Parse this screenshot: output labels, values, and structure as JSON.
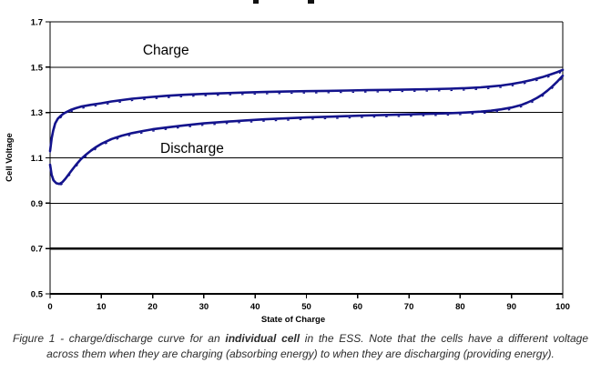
{
  "caption": {
    "line1_pre": "Figure 1 - charge/discharge curve for an ",
    "line1_bold": "individual cell",
    "line1_post": " in the ESS. Note that the cells have a different voltage",
    "line2": "across them when they are charging (absorbing energy) to when they are discharging (providing energy)."
  },
  "chart_data": {
    "type": "line",
    "title": "",
    "xlabel": "State of Charge",
    "ylabel": "Cell Voltage",
    "xlim": [
      0,
      100
    ],
    "ylim": [
      0.5,
      1.7
    ],
    "xticks": [
      0,
      10,
      20,
      30,
      40,
      50,
      60,
      70,
      80,
      90,
      100
    ],
    "yticks": [
      0.5,
      0.7,
      0.9,
      1.1,
      1.3,
      1.5,
      1.7
    ],
    "grid": true,
    "emphasized_gridline": 0.7,
    "legend_position": "none",
    "line_color": "#13138c",
    "annotations": [
      {
        "text": "Charge",
        "x": 22.6,
        "y": 1.576
      },
      {
        "text": "Discharge",
        "x": 27.7,
        "y": 1.142
      }
    ],
    "series": [
      {
        "name": "Charge",
        "points": [
          [
            0,
            1.13
          ],
          [
            0.3,
            1.185
          ],
          [
            0.6,
            1.22
          ],
          [
            1,
            1.252
          ],
          [
            1.5,
            1.272
          ],
          [
            2,
            1.284
          ],
          [
            2.5,
            1.293
          ],
          [
            3,
            1.3
          ],
          [
            4,
            1.311
          ],
          [
            5,
            1.319
          ],
          [
            6,
            1.326
          ],
          [
            8,
            1.334
          ],
          [
            10,
            1.341
          ],
          [
            12,
            1.349
          ],
          [
            14,
            1.355
          ],
          [
            16,
            1.361
          ],
          [
            18,
            1.365
          ],
          [
            20,
            1.369
          ],
          [
            23,
            1.374
          ],
          [
            26,
            1.378
          ],
          [
            30,
            1.382
          ],
          [
            34,
            1.3855
          ],
          [
            38,
            1.388
          ],
          [
            42,
            1.3905
          ],
          [
            46,
            1.3925
          ],
          [
            50,
            1.394
          ],
          [
            54,
            1.3955
          ],
          [
            58,
            1.397
          ],
          [
            62,
            1.3985
          ],
          [
            66,
            1.4
          ],
          [
            70,
            1.4015
          ],
          [
            74,
            1.403
          ],
          [
            78,
            1.405
          ],
          [
            81,
            1.4075
          ],
          [
            84,
            1.411
          ],
          [
            86,
            1.4145
          ],
          [
            88,
            1.419
          ],
          [
            90,
            1.4255
          ],
          [
            92,
            1.4335
          ],
          [
            94,
            1.4435
          ],
          [
            96,
            1.456
          ],
          [
            98,
            1.471
          ],
          [
            99,
            1.479
          ],
          [
            100,
            1.488
          ]
        ]
      },
      {
        "name": "Discharge",
        "points": [
          [
            0,
            1.07
          ],
          [
            0.3,
            1.025
          ],
          [
            0.7,
            1.0
          ],
          [
            1.2,
            0.988
          ],
          [
            1.8,
            0.985
          ],
          [
            2.4,
            0.993
          ],
          [
            3,
            1.008
          ],
          [
            4,
            1.038
          ],
          [
            5,
            1.068
          ],
          [
            6,
            1.094
          ],
          [
            7,
            1.114
          ],
          [
            8,
            1.132
          ],
          [
            9,
            1.148
          ],
          [
            10,
            1.162
          ],
          [
            12,
            1.183
          ],
          [
            14,
            1.198
          ],
          [
            16,
            1.209
          ],
          [
            18,
            1.218
          ],
          [
            20,
            1.226
          ],
          [
            23,
            1.235
          ],
          [
            26,
            1.243
          ],
          [
            30,
            1.252
          ],
          [
            34,
            1.259
          ],
          [
            38,
            1.265
          ],
          [
            42,
            1.27
          ],
          [
            46,
            1.274
          ],
          [
            50,
            1.278
          ],
          [
            55,
            1.282
          ],
          [
            60,
            1.286
          ],
          [
            65,
            1.289
          ],
          [
            70,
            1.292
          ],
          [
            75,
            1.295
          ],
          [
            78,
            1.297
          ],
          [
            81,
            1.3
          ],
          [
            84,
            1.304
          ],
          [
            86,
            1.308
          ],
          [
            88,
            1.314
          ],
          [
            90,
            1.322
          ],
          [
            92,
            1.334
          ],
          [
            93,
            1.343
          ],
          [
            94,
            1.353
          ],
          [
            95,
            1.365
          ],
          [
            96,
            1.379
          ],
          [
            97,
            1.396
          ],
          [
            98,
            1.416
          ],
          [
            99,
            1.438
          ],
          [
            100,
            1.462
          ]
        ]
      }
    ]
  }
}
